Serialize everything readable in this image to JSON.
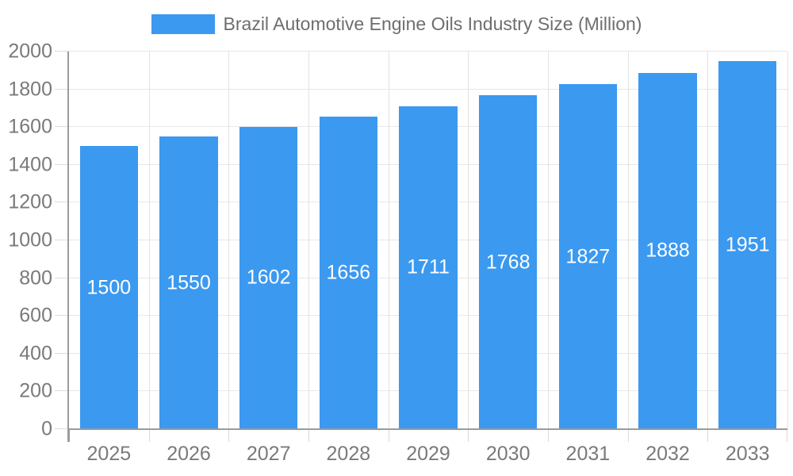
{
  "chart_data": {
    "type": "bar",
    "title": "Brazil Automotive Engine Oils Industry Size (Million)",
    "categories": [
      "2025",
      "2026",
      "2027",
      "2028",
      "2029",
      "2030",
      "2031",
      "2032",
      "2033"
    ],
    "values": [
      1500,
      1550,
      1602,
      1656,
      1711,
      1768,
      1827,
      1888,
      1951
    ],
    "xlabel": "",
    "ylabel": "",
    "ylim": [
      0,
      2000
    ],
    "y_tick_step": 200,
    "y_ticks": [
      0,
      200,
      400,
      600,
      800,
      1000,
      1200,
      1400,
      1600,
      1800,
      2000
    ],
    "grid": true,
    "legend_position": "top",
    "value_labels": "inside-center"
  },
  "legend": {
    "label": "Brazil Automotive Engine Oils Industry Size (Million)"
  },
  "colors": {
    "bar": "#3B99F0",
    "value_label": "#FFFFFF",
    "axis_label": "#7A7A7A",
    "legend_label": "#6E6E6E",
    "axis_line": "#9B9B9B",
    "h_gridline": "#E8E8E8",
    "v_gridline": "#E2E2E2",
    "tick": "#DCDCDC",
    "background": "#FFFFFF"
  }
}
